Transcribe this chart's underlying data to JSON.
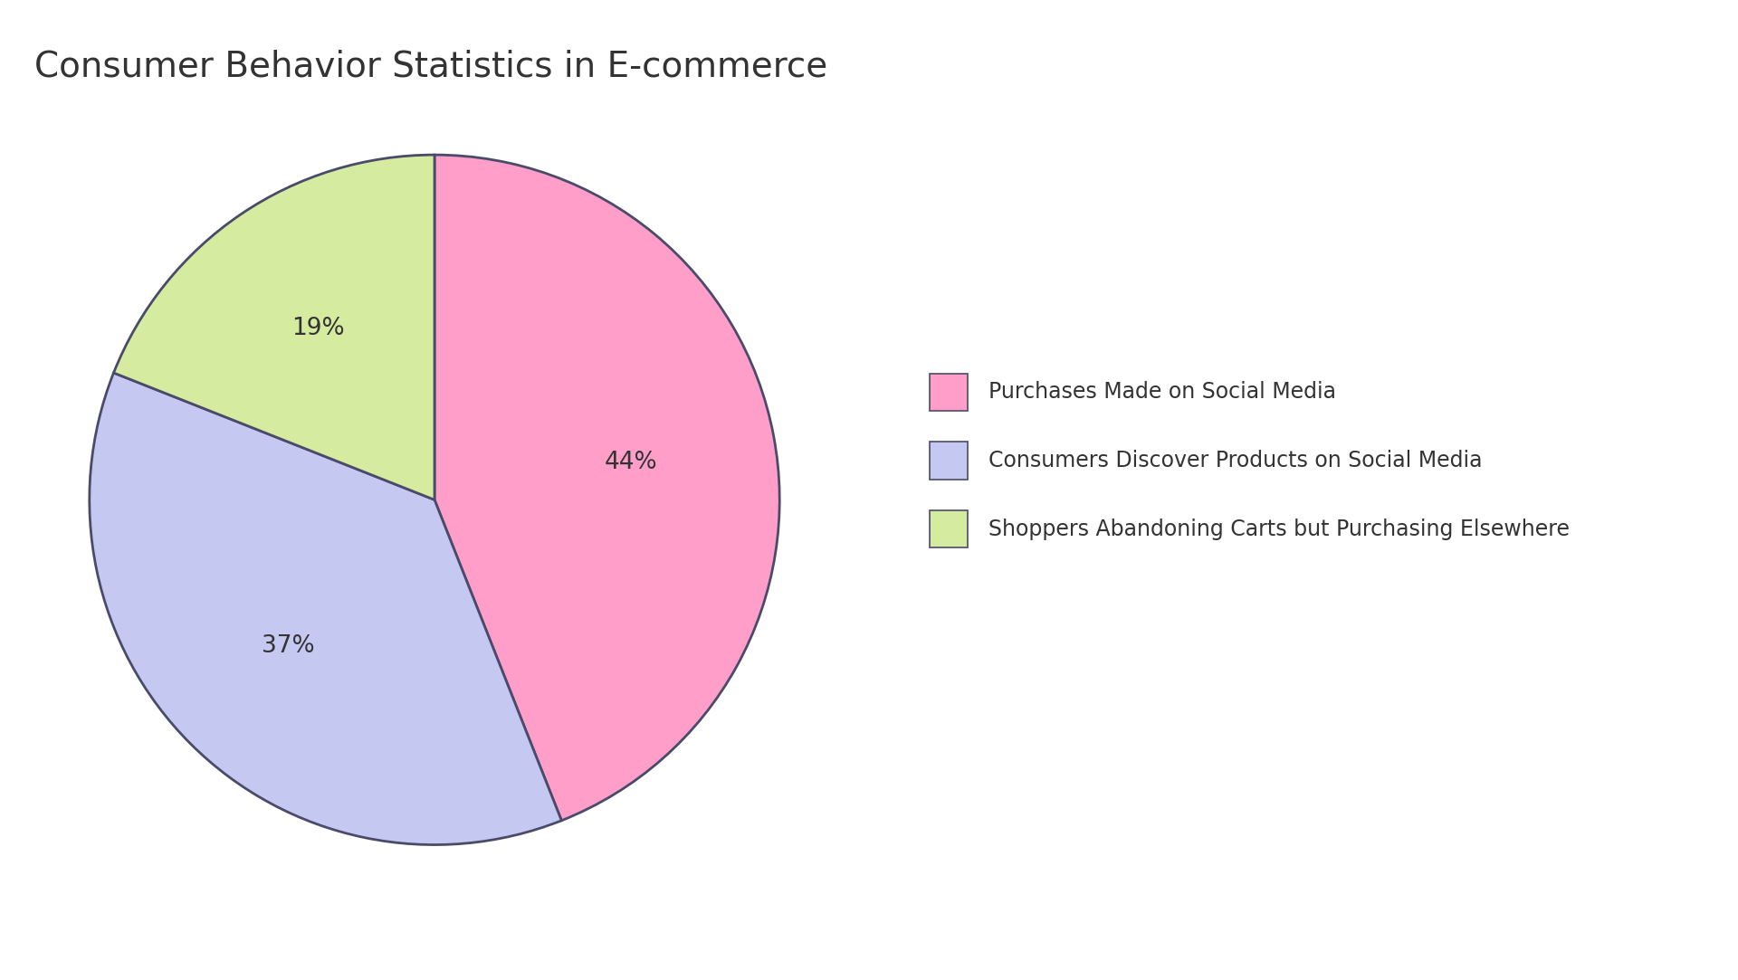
{
  "title": "Consumer Behavior Statistics in E-commerce",
  "slices": [
    44,
    37,
    19
  ],
  "labels": [
    "Purchases Made on Social Media",
    "Consumers Discover Products on Social Media",
    "Shoppers Abandoning Carts but Purchasing Elsewhere"
  ],
  "colors": [
    "#FF9EC8",
    "#C5C8F0",
    "#D4EBA0"
  ],
  "edge_color": "#4a4a6a",
  "edge_width": 2.0,
  "pct_labels": [
    "44%",
    "37%",
    "19%"
  ],
  "title_fontsize": 28,
  "legend_fontsize": 17,
  "pct_fontsize": 19,
  "background_color": "#ffffff",
  "text_color": "#333333",
  "startangle": 90
}
